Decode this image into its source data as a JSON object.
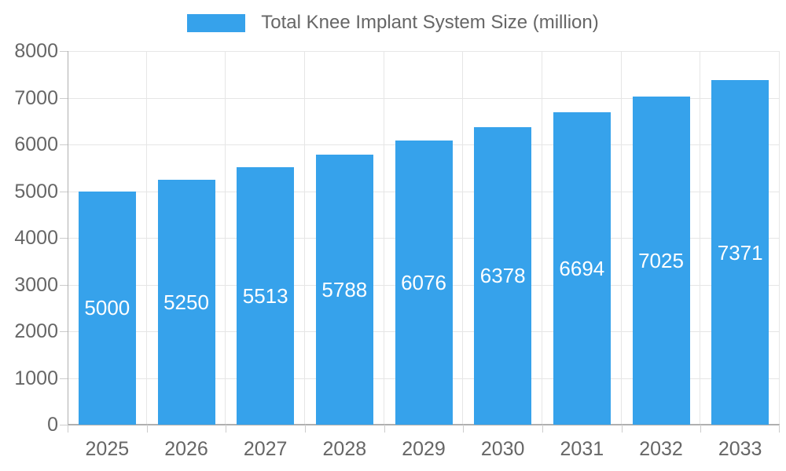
{
  "legend": {
    "label": "Total Knee Implant System Size (million)"
  },
  "chart_data": {
    "type": "bar",
    "title": "",
    "categories": [
      "2025",
      "2026",
      "2027",
      "2028",
      "2029",
      "2030",
      "2031",
      "2032",
      "2033"
    ],
    "series": [
      {
        "name": "Total Knee Implant System Size (million)",
        "values": [
          5000,
          5250,
          5513,
          5788,
          6076,
          6378,
          6694,
          7025,
          7371
        ]
      }
    ],
    "xlabel": "",
    "ylabel": "",
    "ylim": [
      0,
      8000
    ],
    "ytick_step": 1000,
    "ytick_labels": [
      "0",
      "1000",
      "2000",
      "3000",
      "4000",
      "5000",
      "6000",
      "7000",
      "8000"
    ],
    "grid": true,
    "legend_position": "top",
    "value_labels": "inside-center",
    "colors": {
      "bar": "#36A2EB",
      "value_label": "#FFFFFF",
      "axis_text": "#666666",
      "grid_line": "#E6E6E6",
      "axis_line": "#B0B0B0",
      "tick": "#CCCCCC",
      "background": "#FFFFFF"
    }
  }
}
